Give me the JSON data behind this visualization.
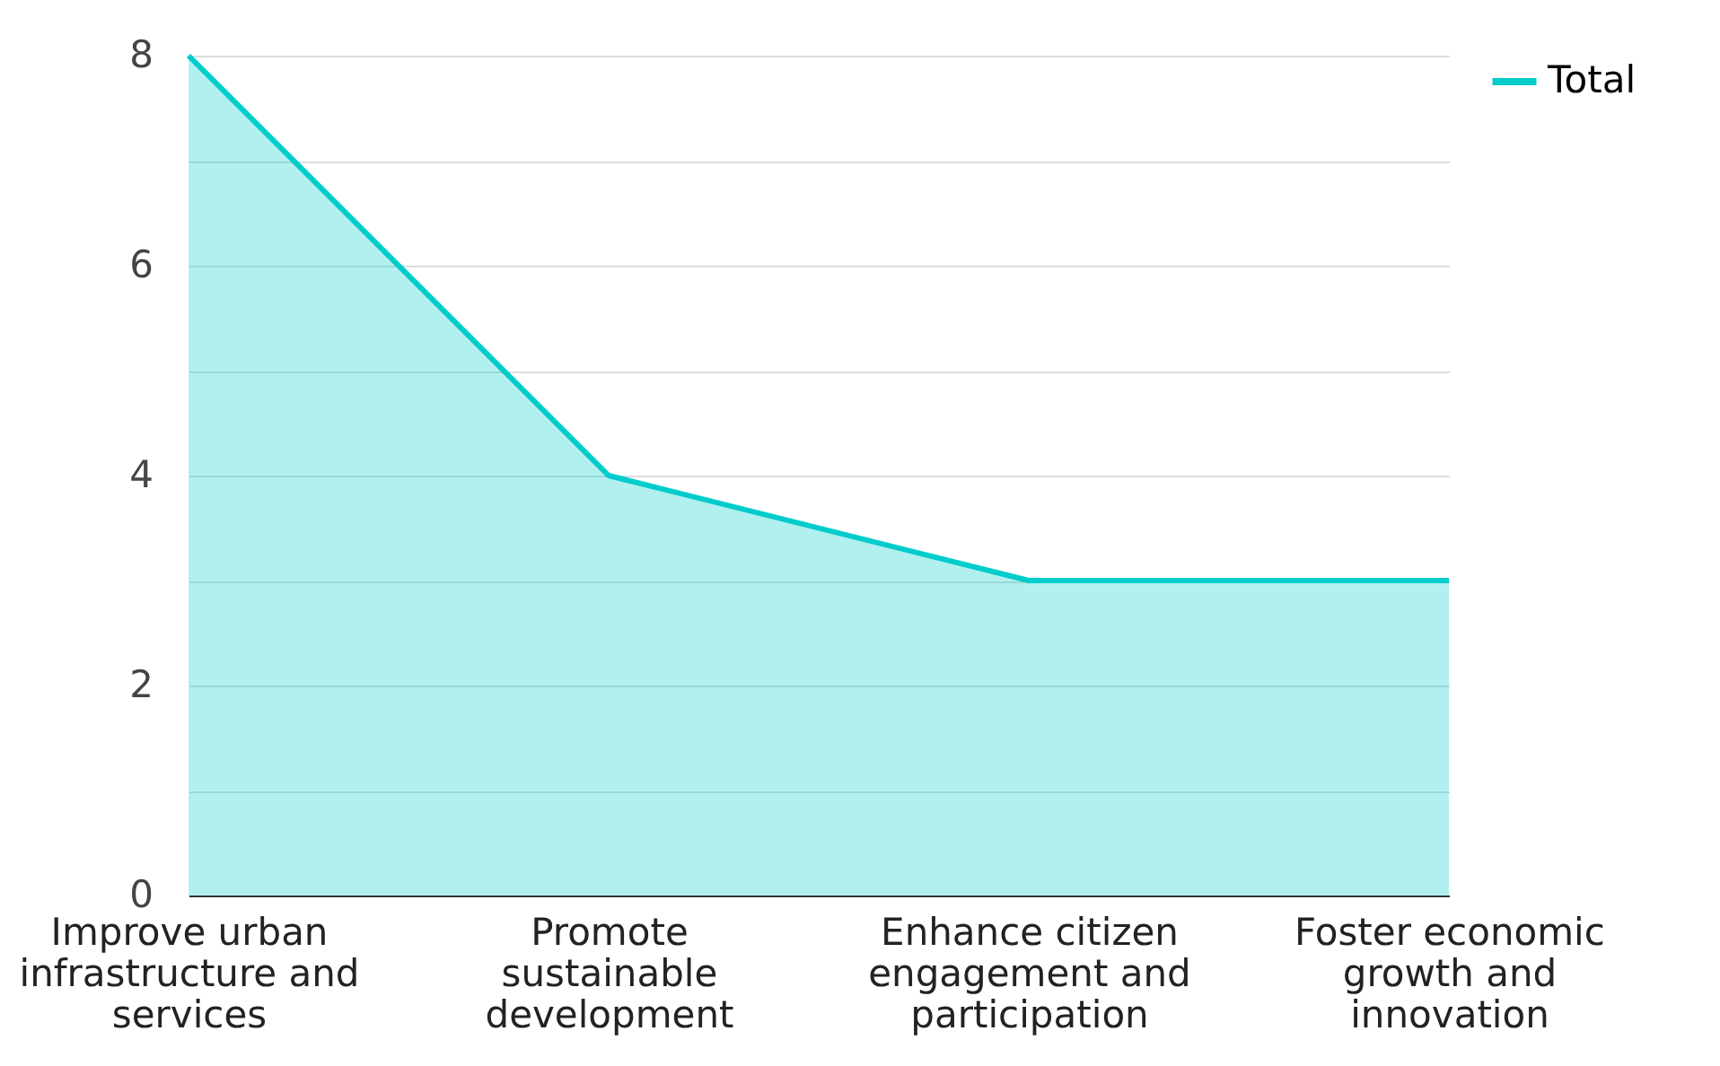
{
  "chart_data": {
    "type": "area",
    "categories": [
      "Improve urban infrastructure and services",
      "Promote sustainable development",
      "Enhance citizen engagement and participation",
      "Foster economic growth and innovation"
    ],
    "series": [
      {
        "name": "Total",
        "color": "#00cccc",
        "values": [
          8,
          4,
          3,
          3
        ]
      }
    ],
    "ylim": [
      0,
      8
    ],
    "yticks": [
      0,
      {
        "value": 1,
        "label": null
      },
      2,
      {
        "value": 3,
        "label": null
      },
      4,
      {
        "value": 5,
        "label": null
      },
      6,
      {
        "value": 7,
        "label": null
      },
      8
    ],
    "grid": "y",
    "legend": "top right"
  }
}
